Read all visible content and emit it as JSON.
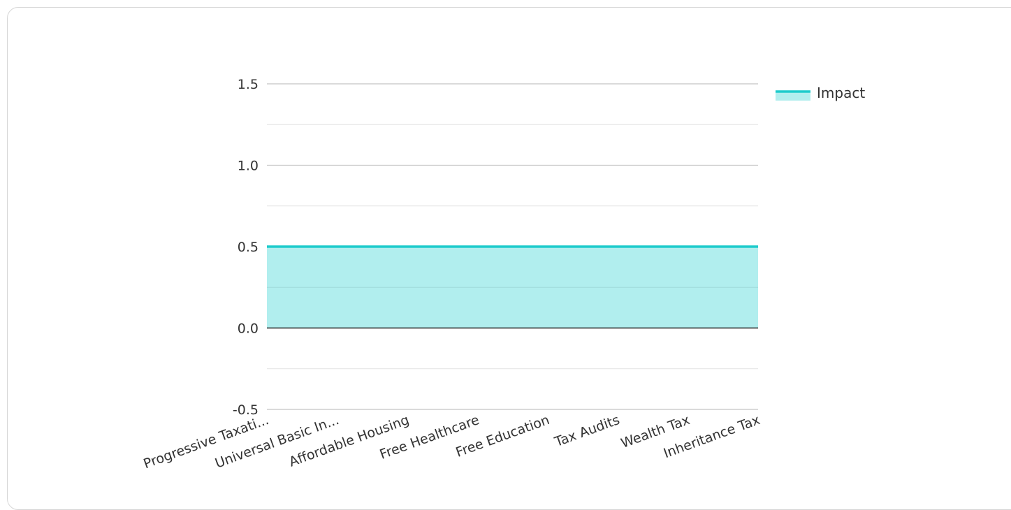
{
  "chart_data": {
    "type": "area",
    "categories": [
      "Progressive Taxati...",
      "Universal Basic In...",
      "Affordable Housing",
      "Free Healthcare",
      "Free Education",
      "Tax Audits",
      "Wealth Tax",
      "Inheritance Tax"
    ],
    "series": [
      {
        "name": "Impact",
        "values": [
          0.5,
          0.5,
          0.5,
          0.5,
          0.5,
          0.5,
          0.5,
          0.5
        ],
        "line_color": "#1ecbcc",
        "fill_color": "#b1eeee"
      }
    ],
    "ylim": [
      -0.5,
      1.5
    ],
    "y_ticks": [
      "1.5",
      "1.0",
      "0.5",
      "0.0",
      "-0.5"
    ],
    "y_tick_values": [
      1.5,
      1.0,
      0.5,
      0.0,
      -0.5
    ],
    "grid": true,
    "legend_position": "top-right",
    "title": "",
    "xlabel": "",
    "ylabel": ""
  }
}
